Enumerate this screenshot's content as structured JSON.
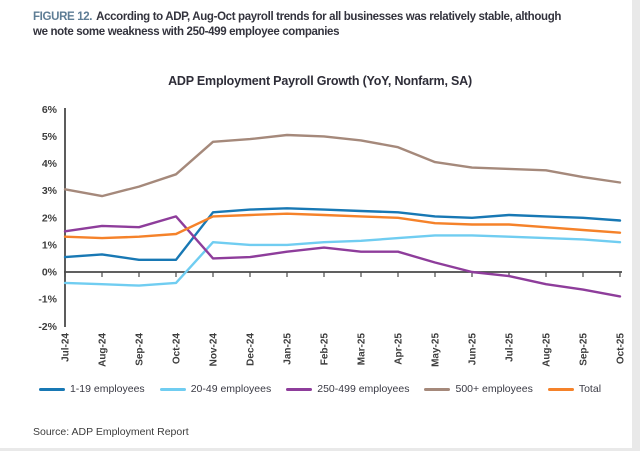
{
  "figure": {
    "label": "FIGURE 12.",
    "caption_line1": "According to ADP, Aug-Oct payroll trends for all businesses was relatively stable, although",
    "caption_line2": "we note some weakness with 250-499 employee companies"
  },
  "source": "Source: ADP Employment Report",
  "chart_data": {
    "type": "line",
    "title": "ADP Employment Payroll Growth (YoY, Nonfarm, SA)",
    "categories": [
      "Jul-24",
      "Aug-24",
      "Sep-24",
      "Oct-24",
      "Nov-24",
      "Dec-24",
      "Jan-25",
      "Feb-25",
      "Mar-25",
      "Apr-25",
      "May-25",
      "Jun-25",
      "Jul-25",
      "Aug-25",
      "Sep-25",
      "Oct-25"
    ],
    "series": [
      {
        "name": "1-19 employees",
        "color": "#1878b4",
        "values": [
          0.55,
          0.65,
          0.45,
          0.45,
          2.2,
          2.3,
          2.35,
          2.3,
          2.25,
          2.2,
          2.05,
          2.0,
          2.1,
          2.05,
          2.0,
          1.9
        ]
      },
      {
        "name": "20-49 employees",
        "color": "#70cdf1",
        "values": [
          -0.4,
          -0.45,
          -0.5,
          -0.4,
          1.1,
          1.0,
          1.0,
          1.1,
          1.15,
          1.25,
          1.35,
          1.35,
          1.3,
          1.25,
          1.2,
          1.1
        ]
      },
      {
        "name": "250-499 employees",
        "color": "#8e3d9b",
        "values": [
          1.5,
          1.7,
          1.65,
          2.05,
          0.5,
          0.55,
          0.75,
          0.9,
          0.75,
          0.75,
          0.35,
          0.0,
          -0.15,
          -0.45,
          -0.65,
          -0.9
        ]
      },
      {
        "name": "500+ employees",
        "color": "#a5897b",
        "values": [
          3.05,
          2.8,
          3.15,
          3.6,
          4.8,
          4.9,
          5.05,
          5.0,
          4.85,
          4.6,
          4.05,
          3.85,
          3.8,
          3.75,
          3.5,
          3.3
        ]
      },
      {
        "name": "Total",
        "color": "#f5822a",
        "values": [
          1.3,
          1.25,
          1.3,
          1.4,
          2.05,
          2.1,
          2.15,
          2.1,
          2.05,
          2.0,
          1.8,
          1.75,
          1.75,
          1.65,
          1.55,
          1.45
        ]
      }
    ],
    "ylim": [
      -2,
      6
    ],
    "ytick_step": 1,
    "ytick_suffix": "%",
    "grid": false,
    "legend_position": "bottom",
    "axis_color": "#4a4a4a",
    "tick_label_color": "#3d3d3d"
  }
}
